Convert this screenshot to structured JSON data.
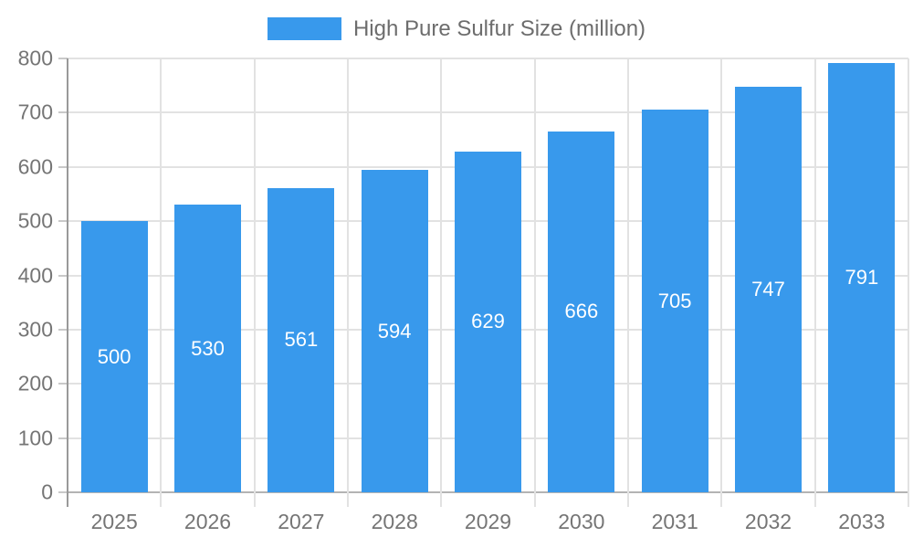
{
  "chart_data": {
    "type": "bar",
    "title": "",
    "xlabel": "",
    "ylabel": "",
    "categories": [
      "2025",
      "2026",
      "2027",
      "2028",
      "2029",
      "2030",
      "2031",
      "2032",
      "2033"
    ],
    "series": [
      {
        "name": "High Pure Sulfur Size (million)",
        "values": [
          500,
          530,
          561,
          594,
          629,
          666,
          705,
          747,
          791
        ]
      }
    ],
    "bar_value_labels": [
      "500",
      "530",
      "561",
      "594",
      "629",
      "666",
      "705",
      "747",
      "791"
    ],
    "ylim": [
      0,
      800
    ],
    "ytick_step": 100,
    "ytick_labels": [
      "0",
      "100",
      "200",
      "300",
      "400",
      "500",
      "600",
      "700",
      "800"
    ],
    "grid": true,
    "legend_position": "top-center",
    "colors": {
      "bar": "#3899EC",
      "bar_label": "#ffffff",
      "axis_text": "#757575",
      "legend_text": "#6d6d6d",
      "gridline": "#e2e2e2",
      "tick": "#c9c9c9",
      "axis_line": "#999999",
      "zero_line": "#b3b3b3",
      "background": "#ffffff"
    }
  }
}
